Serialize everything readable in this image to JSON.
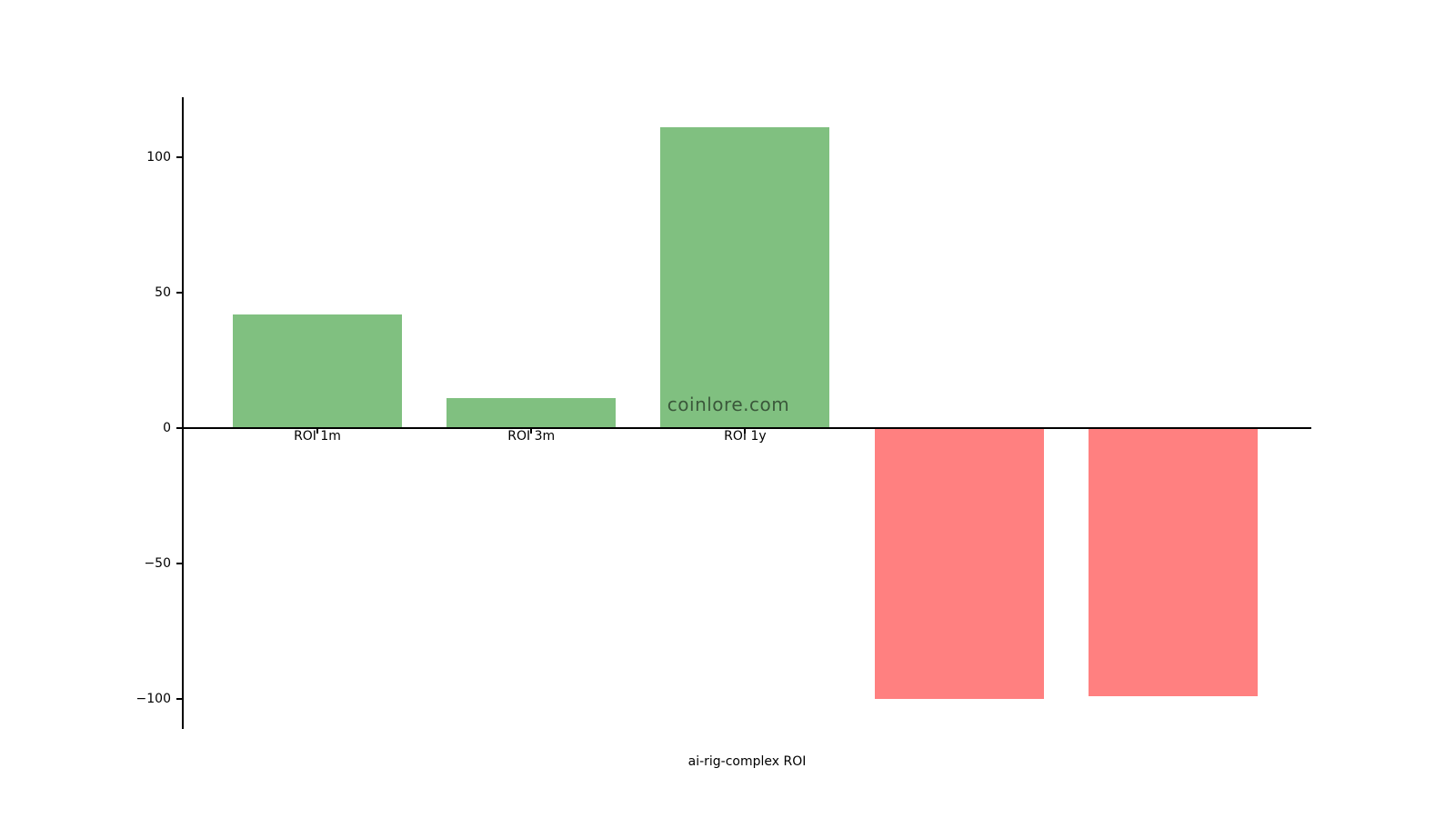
{
  "page": {
    "background": "#ffffff"
  },
  "watermark": {
    "text": "coinlore.com",
    "color": "rgba(0,0,0,0.55)"
  },
  "chart_data": {
    "type": "bar",
    "title": "ai-rig-complex ROI",
    "categories": [
      "ROI 1m",
      "ROI 3m",
      "ROI 1y",
      "",
      ""
    ],
    "values": [
      42,
      11,
      111,
      -100,
      -99
    ],
    "yticks": [
      100,
      50,
      0,
      -50,
      -100
    ],
    "ylim": [
      -111,
      122
    ],
    "xlabel": "ai-rig-complex ROI",
    "ylabel": "",
    "grid": false,
    "legend": "none",
    "colors": {
      "positive_bar": "#80c080",
      "negative_bar": "#ff8080",
      "axis": "#000000",
      "tick_text": "#000000"
    }
  }
}
